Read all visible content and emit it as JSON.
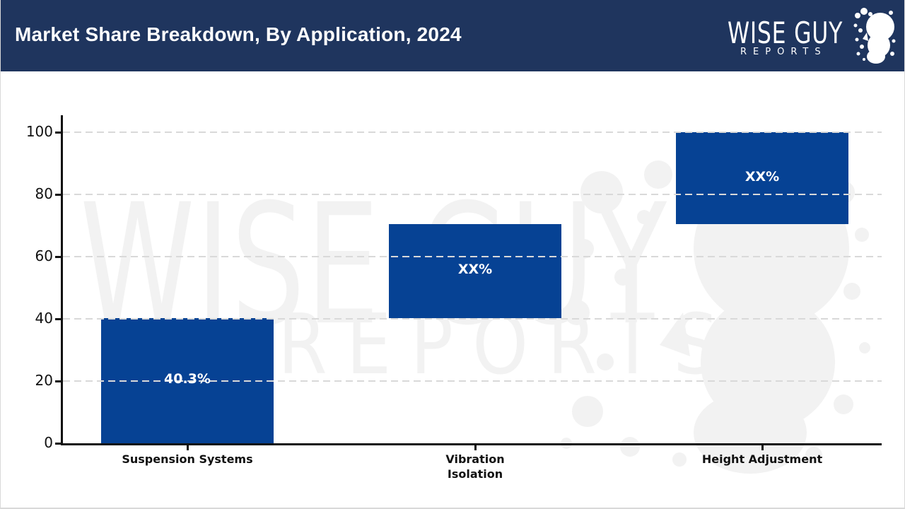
{
  "header": {
    "title": "Market Share Breakdown, By Application, 2024",
    "bg_color": "#1f355e",
    "logo": {
      "wordmark": "WISE GUY",
      "subtext": "REPORTS"
    }
  },
  "watermark": {
    "line1": "WISE GUY",
    "line2": "REPORTS"
  },
  "chart_data": {
    "type": "bar",
    "variant": "stacked-waterfall",
    "title": "Market Share Breakdown, By Application, 2024",
    "categories": [
      "Suspension Systems",
      "Vibration\nIsolation",
      "Height Adjustment"
    ],
    "segments": [
      {
        "category": "Suspension Systems",
        "start": 0,
        "end": 40.3,
        "label": "40.3%"
      },
      {
        "category": "Vibration Isolation",
        "start": 40.3,
        "end": 70.5,
        "label": "XX%"
      },
      {
        "category": "Height Adjustment",
        "start": 70.5,
        "end": 100,
        "label": "XX%"
      }
    ],
    "xlabel": "",
    "ylabel": "",
    "ylim": [
      0,
      100
    ],
    "yticks": [
      0,
      20,
      40,
      60,
      80,
      100
    ],
    "grid": {
      "axis": "y",
      "style": "dashed",
      "color": "#d9d9d9",
      "drawn_over_bars": true
    },
    "bar_color": "#064294",
    "bar_label_color": "#ffffff",
    "axis_color": "#111111",
    "legend": "none"
  }
}
